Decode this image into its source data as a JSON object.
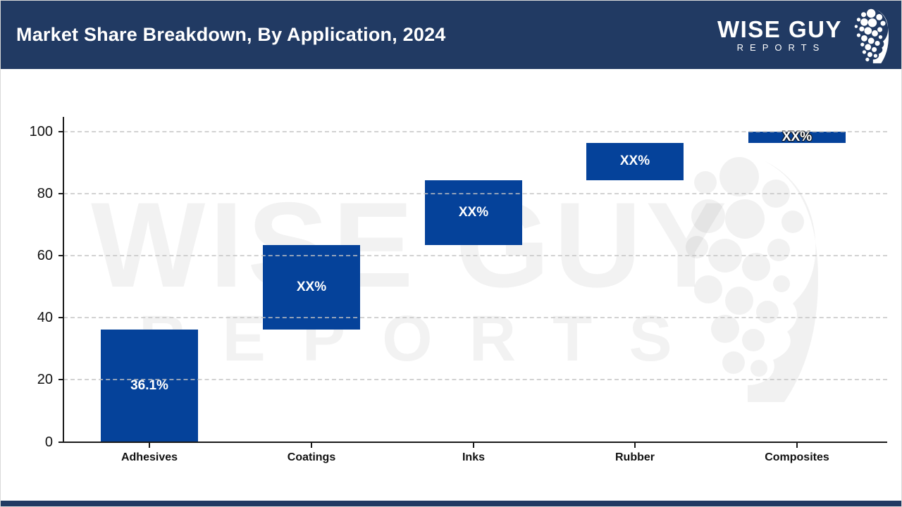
{
  "header": {
    "title": "Market Share Breakdown, By Application, 2024",
    "logo": {
      "line1": "WISE GUY",
      "line2": "REPORTS"
    }
  },
  "watermark": {
    "line1": "WISE GUY",
    "line2": "REPORTS"
  },
  "colors": {
    "header_bg": "#213a63",
    "footer_bg": "#213a63",
    "bar": "#05429a",
    "grid": "#c9c9c9",
    "axis": "#1a1a1a",
    "bar_label": "#ffffff"
  },
  "chart_data": {
    "type": "bar",
    "subtype": "waterfall",
    "title": "Market Share Breakdown, By Application, 2024",
    "categories": [
      "Adhesives",
      "Coatings",
      "Inks",
      "Rubber",
      "Composites"
    ],
    "segments": [
      {
        "category": "Adhesives",
        "start": 0,
        "end": 36.1,
        "label": "36.1%",
        "label_outlined": false
      },
      {
        "category": "Coatings",
        "start": 36.1,
        "end": 63.5,
        "label": "XX%",
        "label_outlined": false
      },
      {
        "category": "Inks",
        "start": 63.5,
        "end": 84.3,
        "label": "XX%",
        "label_outlined": false
      },
      {
        "category": "Rubber",
        "start": 84.3,
        "end": 96.4,
        "label": "XX%",
        "label_outlined": false
      },
      {
        "category": "Composites",
        "start": 96.4,
        "end": 100,
        "label": "XX%",
        "label_outlined": true
      }
    ],
    "xlabel": "",
    "ylabel": "",
    "ylim": [
      0,
      100
    ],
    "yticks": [
      0,
      20,
      40,
      60,
      80,
      100
    ],
    "grid": "horizontal-dashed",
    "legend": "none"
  }
}
